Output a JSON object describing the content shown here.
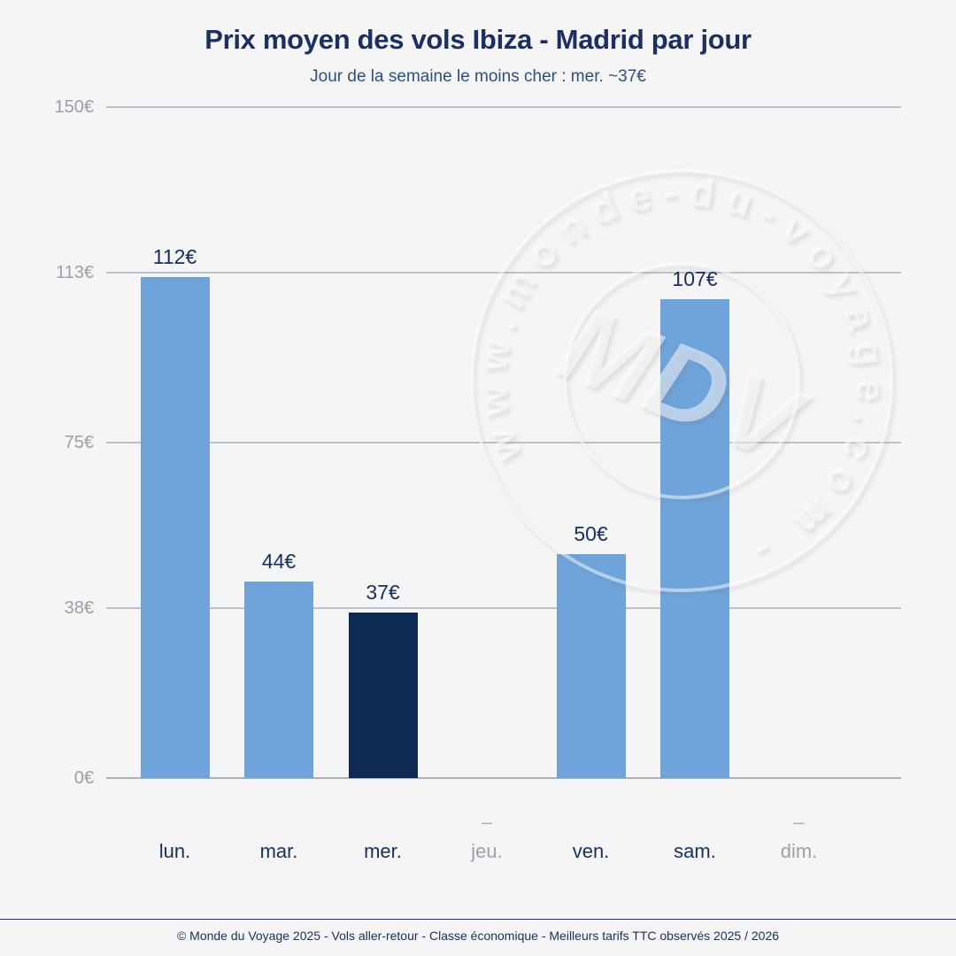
{
  "page": {
    "background": "#f5f5f6"
  },
  "header": {
    "title": "Prix moyen des vols Ibiza - Madrid par jour",
    "subtitle": "Jour de la semaine le moins cher : mer. ~37€"
  },
  "chart_data": {
    "type": "bar",
    "title": "Prix moyen des vols Ibiza - Madrid par jour",
    "subtitle": "Jour de la semaine le moins cher : mer. ~37€",
    "categories": [
      "lun.",
      "mar.",
      "mer.",
      "jeu.",
      "ven.",
      "sam.",
      "dim."
    ],
    "values": [
      112,
      44,
      37,
      null,
      50,
      107,
      null
    ],
    "bar_value_labels": [
      "112€",
      "44€",
      "37€",
      null,
      "50€",
      "107€",
      null
    ],
    "no_data_marker": "–",
    "highlight_index": 2,
    "xlabel": "",
    "ylabel": "",
    "ylim": [
      0,
      150
    ],
    "y_ticks": [
      0,
      38,
      75,
      113,
      150
    ],
    "y_tick_labels": [
      "0€",
      "38€",
      "75€",
      "113€",
      "150€"
    ],
    "grid": true,
    "legend": false,
    "colors": {
      "bar": "#6fa4da",
      "bar_highlight": "#0d2a52",
      "value_label": "#14305f",
      "axis_label_active": "#16315f",
      "axis_label_inactive": "#9aa2ad",
      "y_tick_label": "#99a0ab",
      "gridline": "#bcc2cb"
    }
  },
  "watermark": {
    "ring_text": "www.monde-du-voyage.com - ",
    "center_text": "MDV"
  },
  "footer": {
    "text": "© Monde du Voyage 2025 - Vols aller-retour - Classe économique - Meilleurs tarifs TTC observés 2025 / 2026"
  }
}
